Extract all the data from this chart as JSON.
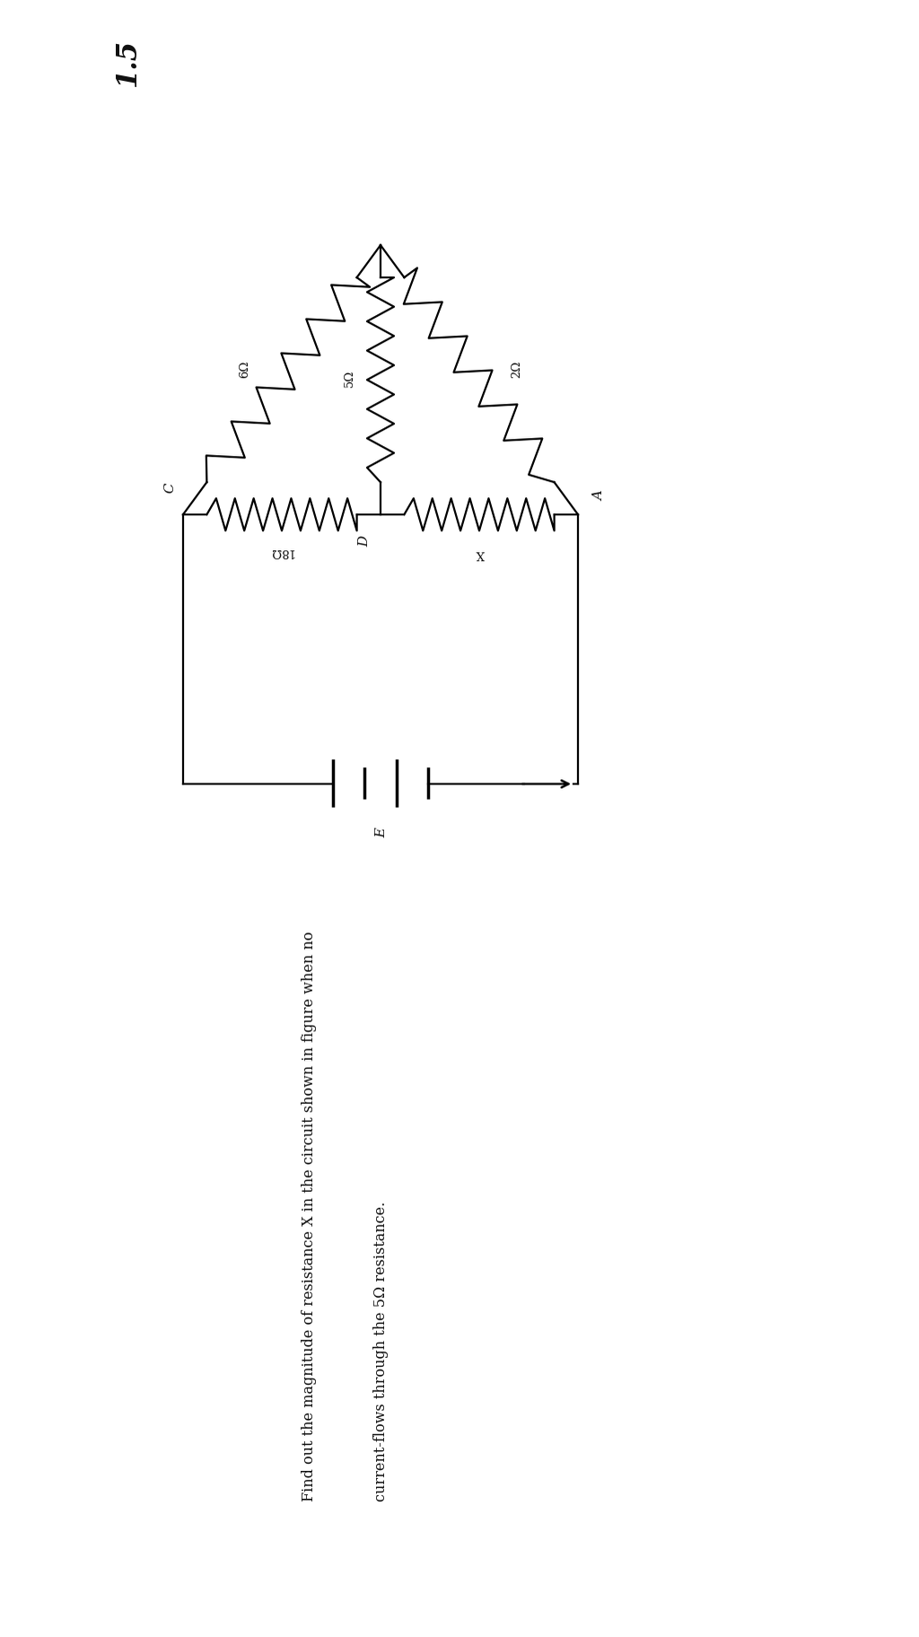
{
  "title_line1": "Find out the magnitude of resistance X in the circuit shown in figure when no",
  "title_line2": "current-flows through the 5Ω resistance.",
  "answer": "1.5",
  "bg_color": "#ffffff",
  "text_color": "#111111",
  "battery_label": "E",
  "node_A": "A",
  "node_D": "D",
  "node_C": "C",
  "res_18": "18Ω",
  "res_X": "X",
  "res_5": "5Ω",
  "res_6": "6Ω",
  "res_2": "2Ω"
}
